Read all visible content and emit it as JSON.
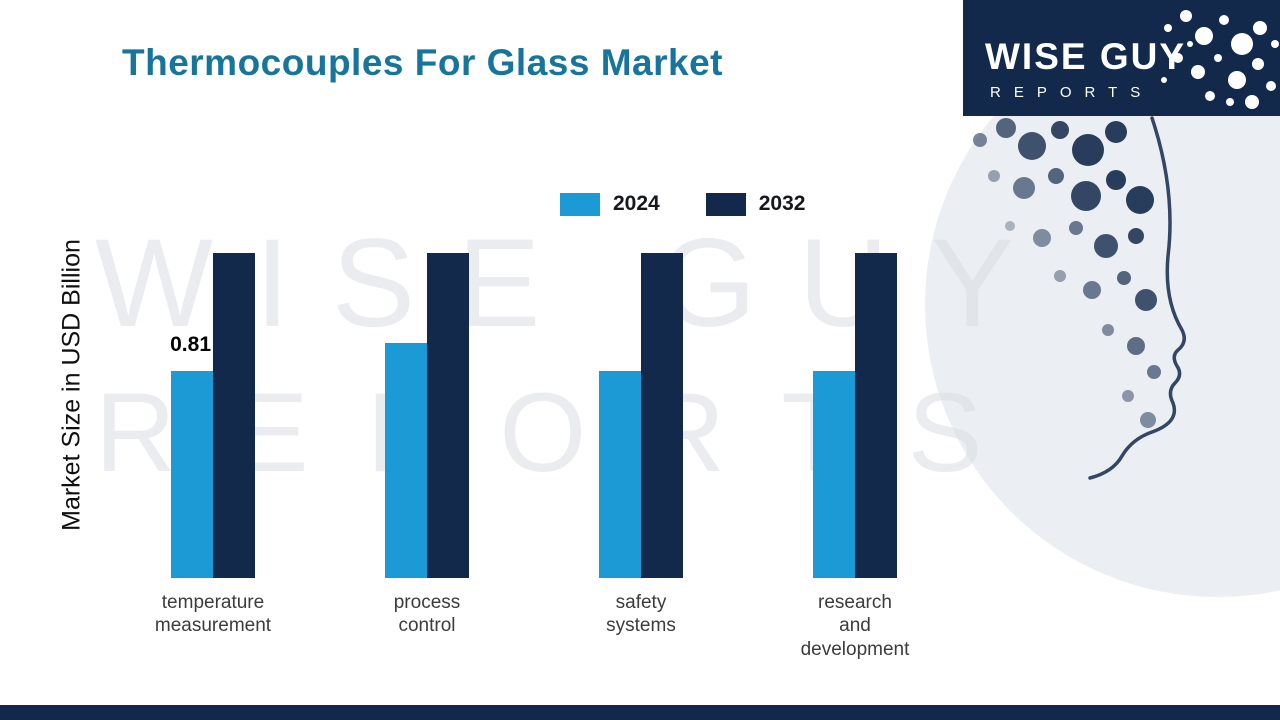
{
  "header": {
    "title": "Thermocouples For Glass Market",
    "logo": {
      "line1": "WISE GUY",
      "line2": "REPORTS"
    }
  },
  "watermark": {
    "line1": "WISE GUY",
    "line2": "REPORTS"
  },
  "colors": {
    "series_2024_blue": "#1C9AD6",
    "series_2032_navy": "#13294B",
    "title_teal": "#17759C",
    "background": "#FFFFFF",
    "decor_circle_gray": "#EBEEF2"
  },
  "chart_data": {
    "type": "bar",
    "title": "Thermocouples For Glass Market",
    "ylabel": "Market Size in USD Billion",
    "xlabel": "",
    "categories": [
      "temperature measurement",
      "process control",
      "safety systems",
      "research and development"
    ],
    "series": [
      {
        "name": "2024",
        "color": "#1C9AD6",
        "values": [
          0.81,
          0.92,
          0.81,
          0.81
        ]
      },
      {
        "name": "2032",
        "color": "#13294B",
        "values": [
          1.27,
          1.27,
          1.27,
          1.27
        ]
      }
    ],
    "data_labels": [
      {
        "series": "2024",
        "category": "temperature measurement",
        "category_index": 0,
        "text": "0.81"
      }
    ],
    "ylim": [
      0,
      1.27
    ],
    "grid": false,
    "y_axis_ticks_visible": false,
    "legend_position": "top"
  }
}
